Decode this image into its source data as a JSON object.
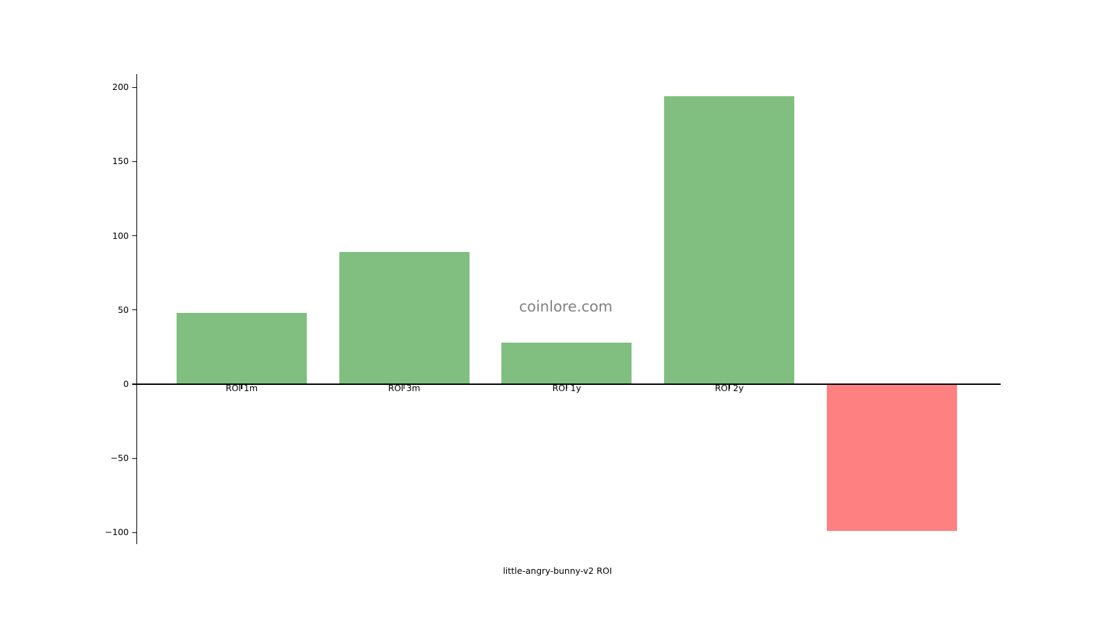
{
  "page": {
    "background": "#ffffff"
  },
  "chart_data": {
    "type": "bar",
    "title": "little-angry-bunny-v2 ROI",
    "title_position": "bottom",
    "watermark": "coinlore.com",
    "categories": [
      "ROI 1m",
      "ROI 3m",
      "ROI 1y",
      "ROI 2y",
      ""
    ],
    "values": [
      48,
      89,
      28,
      194,
      -99
    ],
    "bar_colors": [
      "#80bf80",
      "#80bf80",
      "#80bf80",
      "#80bf80",
      "#ff8080"
    ],
    "positive_color": "#80bf80",
    "negative_color": "#ff8080",
    "axis_color": "#000000",
    "watermark_color": "#808080",
    "yticks": [
      200,
      150,
      100,
      50,
      0,
      -50,
      -100
    ],
    "ylim": [
      -108,
      209
    ],
    "xlabel": "",
    "ylabel": "",
    "grid": false,
    "legend": "none"
  }
}
